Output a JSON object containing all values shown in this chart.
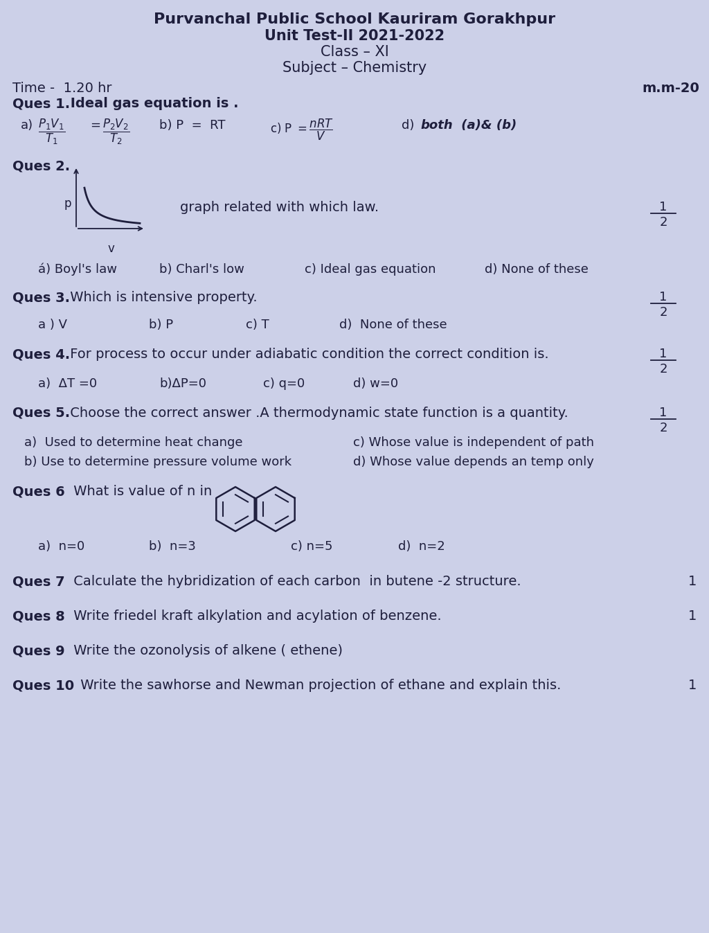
{
  "bg_color": "#ccd0e8",
  "text_color": "#1e1e3c",
  "title_lines": [
    "Purvanchal Public School Kauriram Gorakhpur",
    "Unit Test-II 2021-2022",
    "Class – XI",
    "Subject – Chemistry"
  ],
  "header_left": "Time -  1.20 hr",
  "header_right": "m.m-20"
}
